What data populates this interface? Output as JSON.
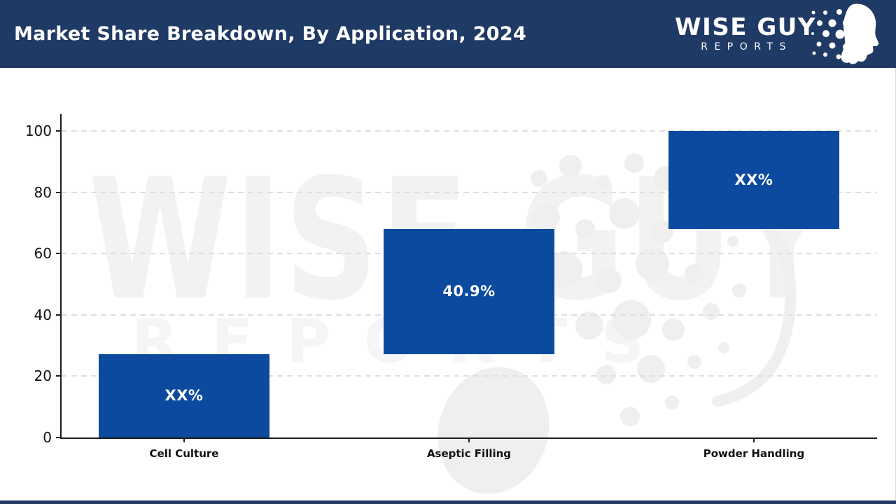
{
  "header": {
    "title": "Market Share Breakdown, By Application, 2024",
    "logo": {
      "wordmark": "WISE GUY",
      "sub": "REPORTS"
    }
  },
  "watermark": {
    "wordmark": "WISE GUY",
    "sub": "REPORTS"
  },
  "chart_data": {
    "type": "bar",
    "variant": "floating-waterfall",
    "title": "Market Share Breakdown, By Application, 2024",
    "categories": [
      "Cell Culture",
      "Aseptic Filling",
      "Powder Handling"
    ],
    "segments": [
      {
        "category": "Cell Culture",
        "start": 0,
        "end": 27.2,
        "label": "XX%"
      },
      {
        "category": "Aseptic Filling",
        "start": 27.2,
        "end": 68.1,
        "label": "40.9%"
      },
      {
        "category": "Powder Handling",
        "start": 68.1,
        "end": 100,
        "label": "XX%"
      }
    ],
    "yticks": [
      0,
      20,
      40,
      60,
      80,
      100
    ],
    "ylim": [
      0,
      105.5
    ],
    "xlabel": "",
    "ylabel": "",
    "grid": "horizontal-dashed",
    "legend": "none"
  },
  "colors": {
    "header_bg": "#203a66",
    "bar": "#0b4a9e",
    "grid": "#dfdfdf",
    "axis": "#1c1c1c",
    "watermark": "#f2f2f2"
  }
}
